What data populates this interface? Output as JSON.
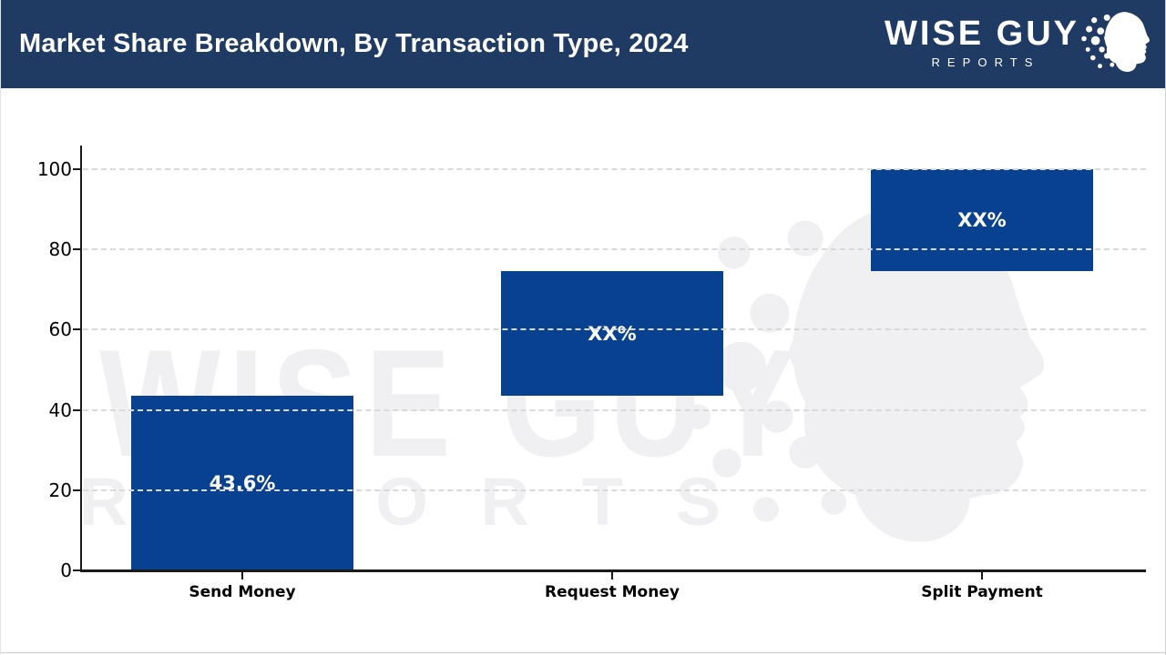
{
  "header": {
    "title": "Market Share Breakdown, By Transaction Type, 2024",
    "logo": {
      "wordmark": "WISE GUY",
      "subtext": "REPORTS"
    }
  },
  "watermark": {
    "line1": "WISE GUY",
    "line2": "REPORTS"
  },
  "colors": {
    "header_bg": "#1f3a63",
    "bar": "#08418f",
    "grid": "#d9d9d9",
    "axis": "#1a1a1a",
    "watermark": "#f0f0f2",
    "bar_label": "#ffffff"
  },
  "chart_data": {
    "type": "bar",
    "subtype": "floating-segment market-share bars (waterfall style, segments sum to 100)",
    "title": "Market Share Breakdown, By Transaction Type, 2024",
    "categories": [
      "Send Money",
      "Request Money",
      "Split Payment"
    ],
    "segments": [
      {
        "category": "Send Money",
        "start": 0,
        "end": 43.6,
        "value": 43.6,
        "label": "43.6%"
      },
      {
        "category": "Request Money",
        "start": 43.6,
        "end": 74.5,
        "value": 30.9,
        "label": "XX%"
      },
      {
        "category": "Split Payment",
        "start": 74.5,
        "end": 100,
        "value": 25.5,
        "label": "XX%"
      }
    ],
    "xlabel": "",
    "ylabel": "",
    "ylim": [
      0,
      100
    ],
    "yticks": [
      0,
      20,
      40,
      60,
      80,
      100
    ],
    "grid": "dashed horizontal gridlines drawn over bars",
    "legend": "none"
  }
}
